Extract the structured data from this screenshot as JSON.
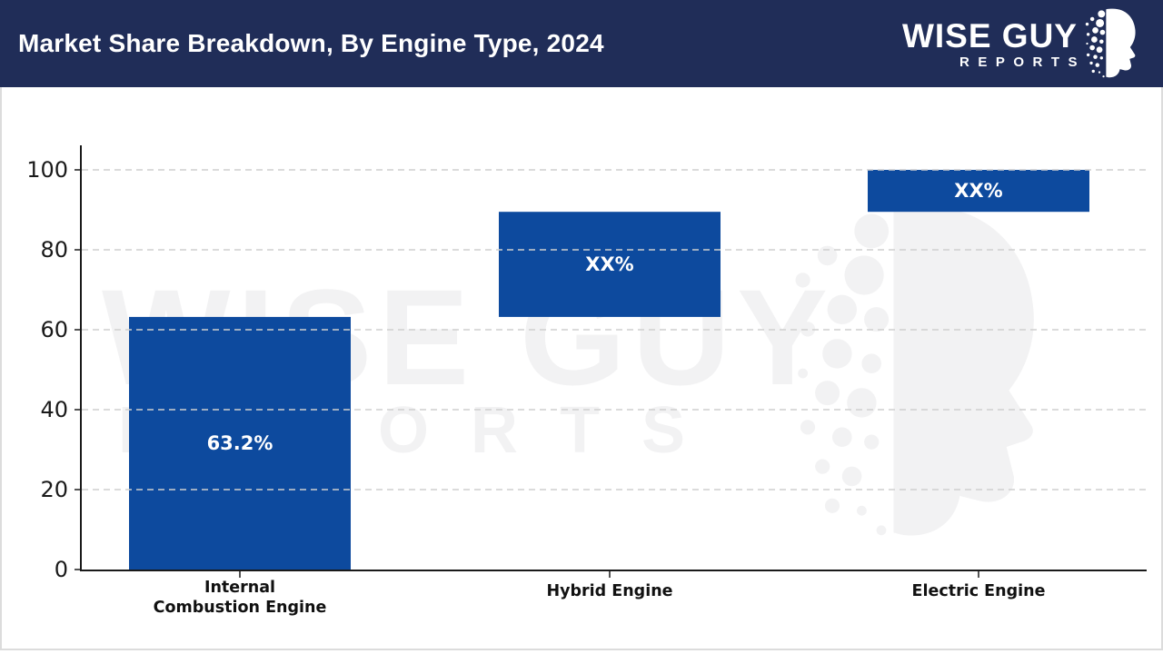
{
  "header": {
    "title": "Market Share Breakdown, By Engine Type, 2024",
    "logo": {
      "line1": "WISE GUY",
      "line2": "REPORTS"
    }
  },
  "watermark": {
    "line1": "WISE GUY",
    "line2": "REPORTS"
  },
  "chart_data": {
    "type": "bar",
    "subtype": "stepped-waterfall",
    "title": "Market Share Breakdown, By Engine Type, 2024",
    "categories": [
      "Internal Combustion Engine",
      "Hybrid Engine",
      "Electric Engine"
    ],
    "category_label_lines": [
      [
        "Internal",
        "Combustion Engine"
      ],
      [
        "Hybrid Engine"
      ],
      [
        "Electric Engine"
      ]
    ],
    "segments": [
      {
        "category": "Internal Combustion Engine",
        "start": 0,
        "end": 63.2,
        "label": "63.2%"
      },
      {
        "category": "Hybrid Engine",
        "start": 63.2,
        "end": 89.5,
        "label": "XX%"
      },
      {
        "category": "Electric Engine",
        "start": 89.5,
        "end": 100,
        "label": "XX%"
      }
    ],
    "xlabel": "",
    "ylabel": "",
    "yticks": [
      0,
      20,
      40,
      60,
      80,
      100
    ],
    "ylim": [
      0,
      106
    ],
    "grid": "horizontal-dashed",
    "legend": "none",
    "colors": {
      "bar": "#0d4a9e",
      "bar_label": "#ffffff",
      "grid": "#cfcfcf",
      "axis": "#1a1a1a",
      "tick_label": "#1a1a1a",
      "header_bg": "#202d58",
      "watermark": "#f2f2f3"
    }
  }
}
